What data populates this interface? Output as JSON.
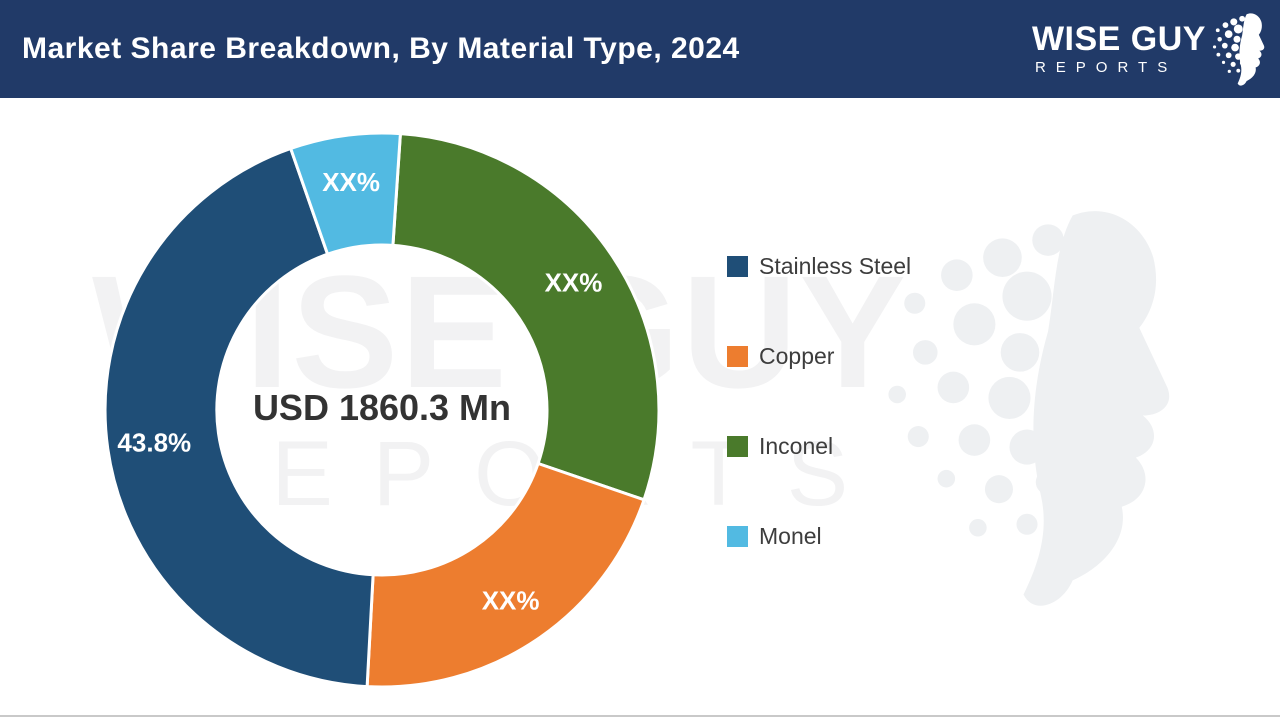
{
  "header": {
    "title": "Market Share Breakdown, By Material Type, 2024",
    "logo": {
      "line1": "WISE GUY",
      "line2": "REPORTS"
    }
  },
  "watermark": {
    "line1": "WISE GUY",
    "line2": "REPORTS"
  },
  "chart_data": {
    "type": "pie",
    "subtype": "donut",
    "title": "Market Share Breakdown, By Material Type, 2024",
    "center_label": "USD 1860.3 Mn",
    "units": "percent",
    "start_angle_deg": 3.8,
    "direction": "clockwise",
    "segments": [
      {
        "name": "Inconel",
        "value": 29.2,
        "display_label": "XX%",
        "color": "#4a7a2b"
      },
      {
        "name": "Copper",
        "value": 20.6,
        "display_label": "XX%",
        "color": "#ed7d2f"
      },
      {
        "name": "Stainless Steel",
        "value": 43.8,
        "display_label": "43.8%",
        "color": "#1f4e77"
      },
      {
        "name": "Monel",
        "value": 6.4,
        "display_label": "XX%",
        "color": "#52bae2"
      }
    ],
    "legend": {
      "position": "right",
      "items": [
        {
          "label": "Stainless Steel",
          "color": "#1f4e77"
        },
        {
          "label": "Copper",
          "color": "#ed7d2f"
        },
        {
          "label": "Inconel",
          "color": "#4a7a2b"
        },
        {
          "label": "Monel",
          "color": "#52bae2"
        }
      ]
    },
    "colors": {
      "header_bg": "#213A68",
      "center_text": "#333333",
      "segment_label_text": "#ffffff",
      "watermark": "#f2f2f3"
    }
  }
}
